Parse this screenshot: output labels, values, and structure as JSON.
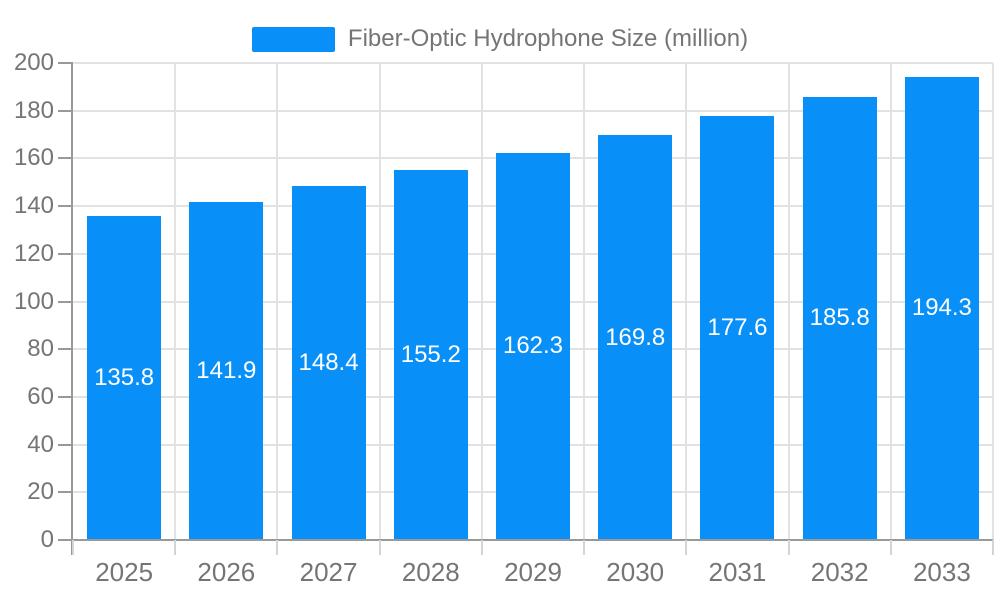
{
  "legend": {
    "label": "Fiber-Optic Hydrophone Size (million)"
  },
  "colors": {
    "bar": "#0890F8",
    "axis": "#999999",
    "grid": "#e2e2e2",
    "x_tick": "#d4d4d4",
    "tick_label": "#757575",
    "legend_label": "#757575",
    "value_label": "#ffffff",
    "background": "#ffffff"
  },
  "chart_data": {
    "type": "bar",
    "title": "",
    "xlabel": "",
    "ylabel": "",
    "categories": [
      "2025",
      "2026",
      "2027",
      "2028",
      "2029",
      "2030",
      "2031",
      "2032",
      "2033"
    ],
    "series": [
      {
        "name": "Fiber-Optic Hydrophone Size (million)",
        "values": [
          135.8,
          141.9,
          148.4,
          155.2,
          162.3,
          169.8,
          177.6,
          185.8,
          194.3
        ]
      }
    ],
    "ylim": [
      0,
      200
    ],
    "ytick_step": 20,
    "grid": "horizontal and vertical category separators",
    "legend_position": "top-center",
    "value_labels": "inside bars, white, centered"
  }
}
